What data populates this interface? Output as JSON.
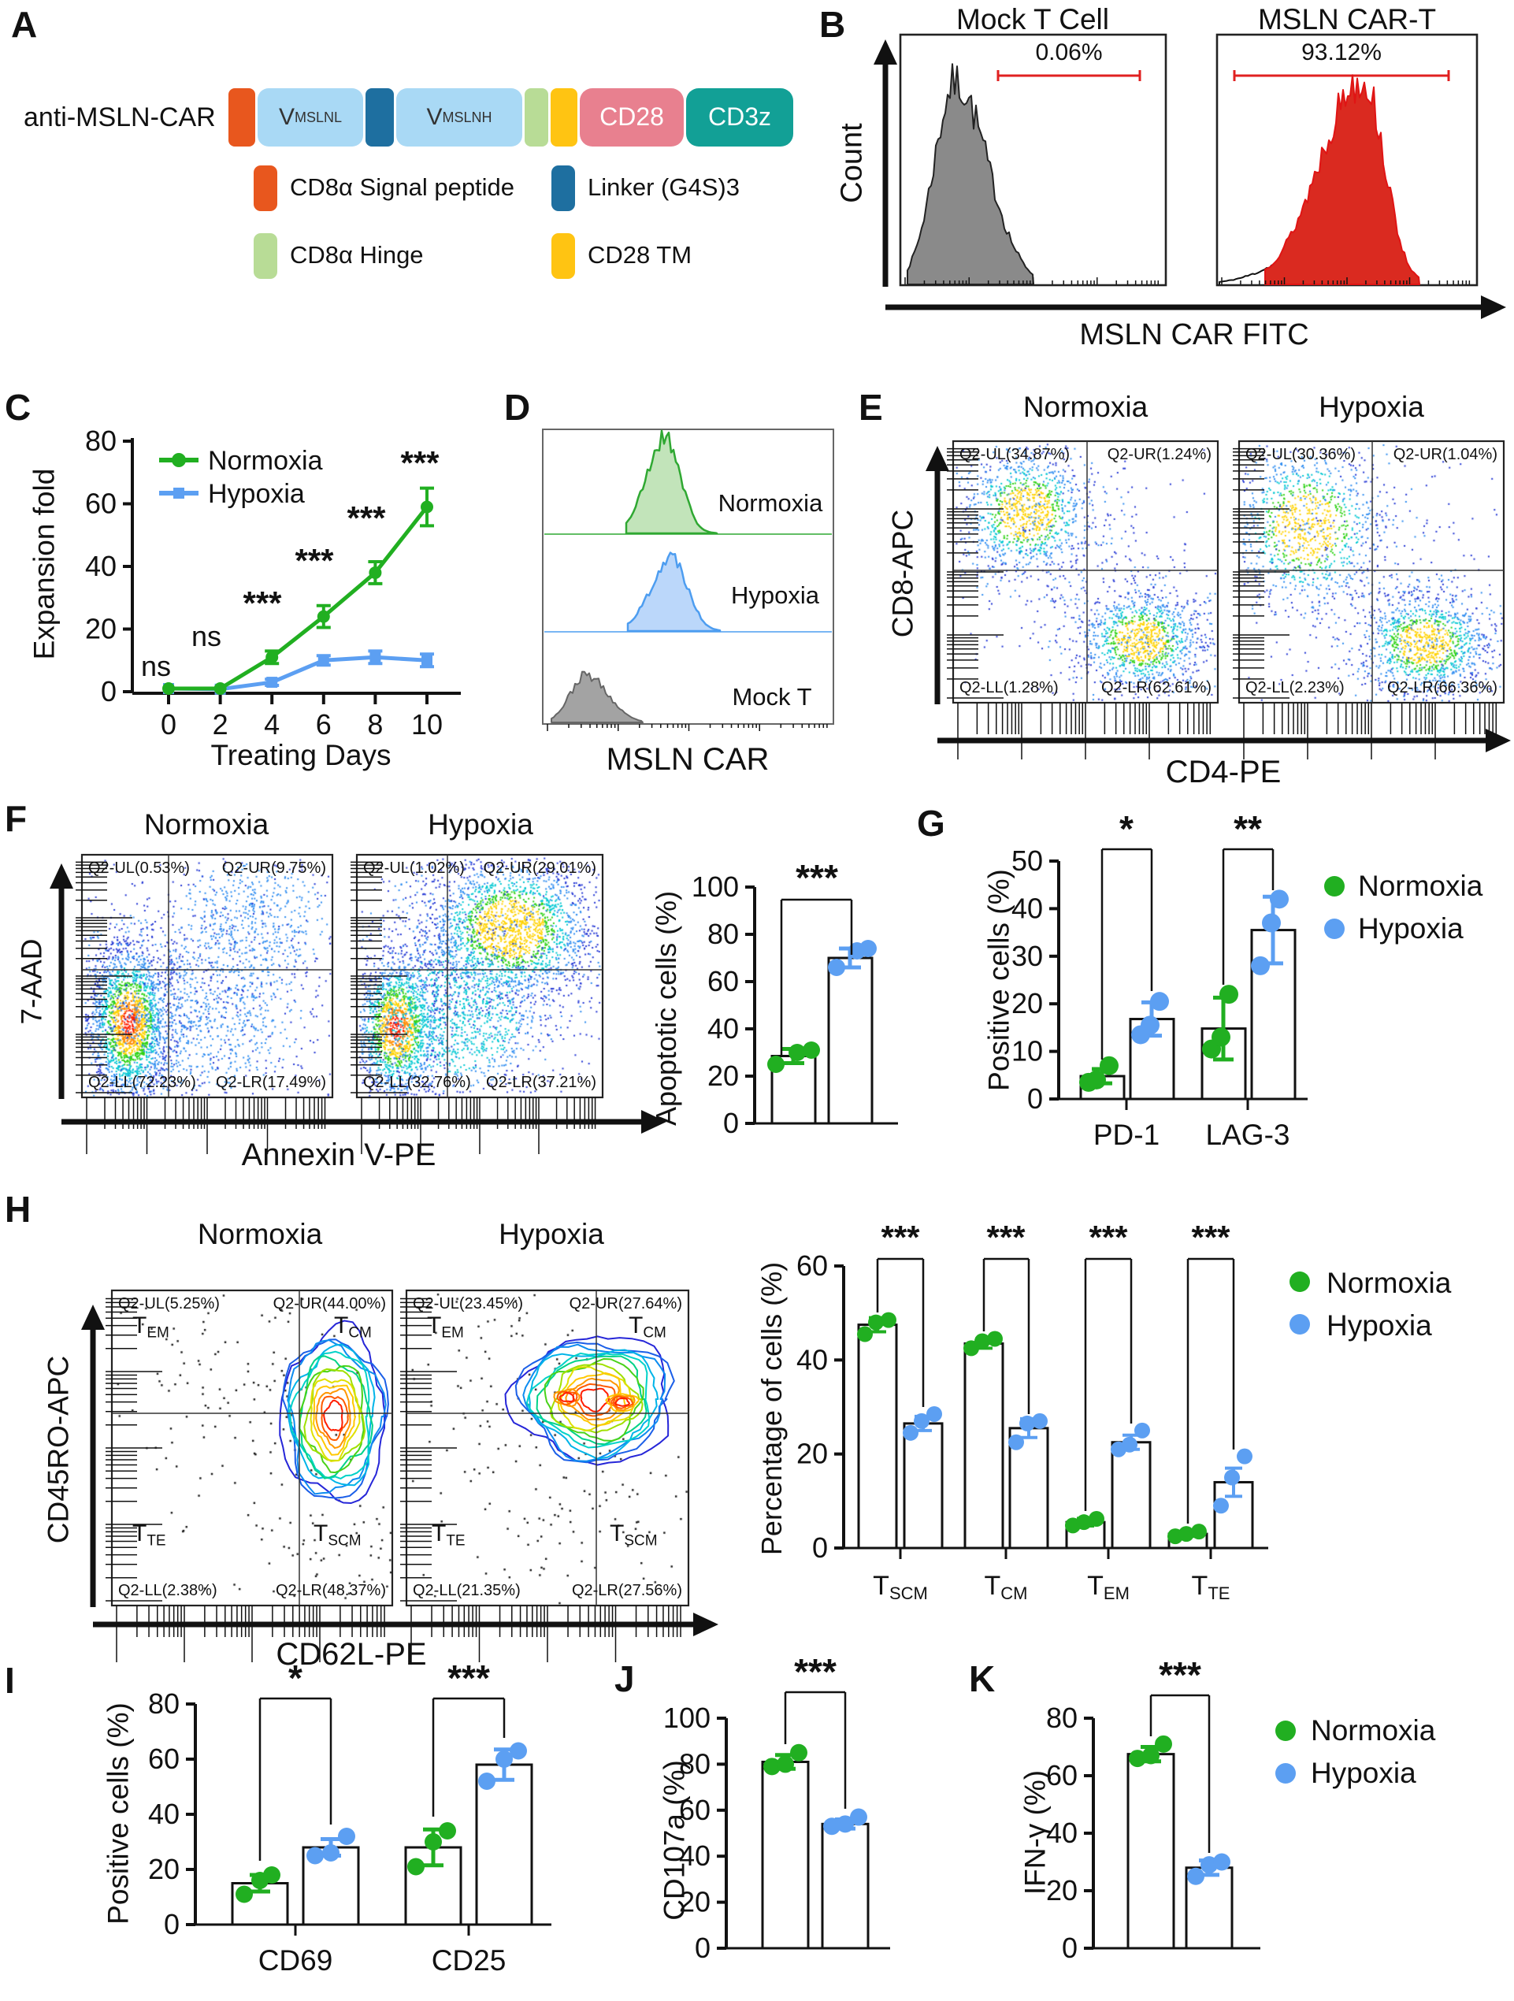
{
  "colors": {
    "normoxia": "#21AF21",
    "hypoxia": "#5C9FF2",
    "mock_grey": "#8A8A8A",
    "car_red": "#DA2A20",
    "gate_red": "#E02020"
  },
  "panels": {
    "A": {
      "letter": "A",
      "label": "anti-MSLN-CAR",
      "segments": [
        {
          "label": "",
          "sub": "",
          "color": "#E8571E"
        },
        {
          "label": "V",
          "sub": "MSLNL",
          "color": "#A9D9F5"
        },
        {
          "label": "",
          "sub": "",
          "color": "#1E6FA0"
        },
        {
          "label": "V",
          "sub": "MSLNH",
          "color": "#A9D9F5"
        },
        {
          "label": "",
          "sub": "",
          "color": "#B8DC96"
        },
        {
          "label": "",
          "sub": "",
          "color": "#FFC412"
        },
        {
          "label": "CD28",
          "sub": "",
          "color": "#E8808F"
        },
        {
          "label": "CD3z",
          "sub": "",
          "color": "#12A096"
        }
      ],
      "legend": [
        {
          "label": "CD8α Signal peptide",
          "color": "#E8571E"
        },
        {
          "label": "Linker (G4S)3",
          "color": "#1E6FA0"
        },
        {
          "label": "CD8α Hinge",
          "color": "#B8DC96"
        },
        {
          "label": "CD28 TM",
          "color": "#FFC412"
        }
      ]
    },
    "B": {
      "letter": "B",
      "titles": [
        "Mock T Cell",
        "MSLN CAR-T"
      ],
      "gates": [
        "0.06%",
        "93.12%"
      ],
      "ylabel": "Count",
      "xlabel": "MSLN CAR FITC"
    },
    "C": {
      "letter": "C",
      "ylabel": "Expansion fold",
      "xlabel": "Treating Days",
      "legend": [
        "Normoxia",
        "Hypoxia"
      ]
    },
    "D": {
      "letter": "D",
      "curves": [
        "Normoxia",
        "Hypoxia",
        "Mock T"
      ],
      "xlabel": "MSLN CAR"
    },
    "E": {
      "letter": "E",
      "titles": [
        "Normoxia",
        "Hypoxia"
      ],
      "ylabel": "CD8-APC",
      "xlabel": "CD4-PE",
      "plots": [
        {
          "quads": [
            "Q2-UL(34.87%)",
            "Q2-UR(1.24%)",
            "Q2-LL(1.28%)",
            "Q2-LR(62.61%)"
          ]
        },
        {
          "quads": [
            "Q2-UL(30.36%)",
            "Q2-UR(1.04%)",
            "Q2-LL(2.23%)",
            "Q2-LR(66.36%)"
          ]
        }
      ]
    },
    "F": {
      "letter": "F",
      "titles": [
        "Normoxia",
        "Hypoxia"
      ],
      "ylabel": "7-AAD",
      "xlabel": "Annexin V-PE",
      "plots": [
        {
          "quads": [
            "Q2-UL(0.53%)",
            "Q2-UR(9.75%)",
            "Q2-LL(72.23%)",
            "Q2-LR(17.49%)"
          ]
        },
        {
          "quads": [
            "Q2-UL(1.02%)",
            "Q2-UR(29.01%)",
            "Q2-LL(32.76%)",
            "Q2-LR(37.21%)"
          ]
        }
      ]
    },
    "G": {
      "letter": "G",
      "ylabel": "Positive cells (%)",
      "legend": [
        "Normoxia",
        "Hypoxia"
      ]
    },
    "H": {
      "letter": "H",
      "titles": [
        "Normoxia",
        "Hypoxia"
      ],
      "ylabel": "CD45RO-APC",
      "xlabel": "CD62L-PE",
      "T": "T",
      "quad_T": [
        "EM",
        "CM",
        "TE",
        "SCM"
      ],
      "plots": [
        {
          "quads": [
            "Q2-UL(5.25%)",
            "Q2-UR(44.00%)",
            "Q2-LL(2.38%)",
            "Q2-LR(48.37%)"
          ]
        },
        {
          "quads": [
            "Q2-UL(23.45%)",
            "Q2-UR(27.64%)",
            "Q2-LL(21.35%)",
            "Q2-LR(27.56%)"
          ]
        }
      ],
      "bar_ylabel": "Percentage of cells (%)",
      "legend": [
        "Normoxia",
        "Hypoxia"
      ]
    },
    "I": {
      "letter": "I",
      "ylabel": "Positive cells (%)"
    },
    "J": {
      "letter": "J",
      "ylabel": "CD107a (%)"
    },
    "K": {
      "letter": "K",
      "ylabel": "IFN-γ (%)",
      "legend": [
        "Normoxia",
        "Hypoxia"
      ]
    }
  },
  "chart_data": [
    {
      "panel": "B",
      "type": "flow-histogram",
      "plots": [
        {
          "title": "Mock T Cell",
          "gate_percent": 0.06,
          "fill": "grey"
        },
        {
          "title": "MSLN CAR-T",
          "gate_percent": 93.12,
          "fill": "red"
        }
      ],
      "xlabel": "MSLN CAR FITC",
      "ylabel": "Count"
    },
    {
      "panel": "C",
      "type": "line",
      "x": [
        0,
        2,
        4,
        6,
        8,
        10
      ],
      "xlabel": "Treating Days",
      "ylabel": "Expansion fold",
      "ylim": [
        0,
        80
      ],
      "yticks": [
        0,
        20,
        40,
        60,
        80
      ],
      "series": [
        {
          "name": "Normoxia",
          "color": "#21AF21",
          "marker": "circle",
          "values": [
            1,
            1,
            11,
            24,
            38,
            59
          ],
          "errors": [
            0.5,
            0.5,
            2,
            3.5,
            3.5,
            6
          ]
        },
        {
          "name": "Hypoxia",
          "color": "#5C9FF2",
          "marker": "square",
          "values": [
            1,
            0.8,
            3,
            10,
            11,
            10
          ],
          "errors": [
            0.3,
            0.3,
            1,
            1.5,
            2,
            2
          ]
        }
      ],
      "significance": [
        "ns",
        "ns",
        "***",
        "***",
        "***",
        "***"
      ],
      "legend_position": "top-left"
    },
    {
      "panel": "D",
      "type": "flow-histogram",
      "curves": [
        "Normoxia",
        "Hypoxia",
        "Mock T"
      ],
      "xlabel": "MSLN CAR"
    },
    {
      "panel": "E",
      "type": "flow-scatter",
      "xlabel": "CD4-PE",
      "ylabel": "CD8-APC",
      "plots": [
        {
          "title": "Normoxia",
          "quadrants": {
            "Q2-UL": 34.87,
            "Q2-UR": 1.24,
            "Q2-LL": 1.28,
            "Q2-LR": 62.61
          }
        },
        {
          "title": "Hypoxia",
          "quadrants": {
            "Q2-UL": 30.36,
            "Q2-UR": 1.04,
            "Q2-LL": 2.23,
            "Q2-LR": 66.36
          }
        }
      ]
    },
    {
      "panel": "F",
      "type": "flow-scatter+bar",
      "xlabel": "Annexin V-PE",
      "ylabel": "7-AAD",
      "plots": [
        {
          "title": "Normoxia",
          "quadrants": {
            "Q2-UL": 0.53,
            "Q2-UR": 9.75,
            "Q2-LL": 72.23,
            "Q2-LR": 17.49
          }
        },
        {
          "title": "Hypoxia",
          "quadrants": {
            "Q2-UL": 1.02,
            "Q2-UR": 29.01,
            "Q2-LL": 32.76,
            "Q2-LR": 37.21
          }
        }
      ],
      "bar": {
        "ylabel": "Apoptotic cells (%)",
        "ylim": [
          0,
          100
        ],
        "yticks": [
          0,
          20,
          40,
          60,
          80,
          100
        ],
        "categories": [
          "Normoxia",
          "Hypoxia"
        ],
        "values": [
          28.5,
          70
        ],
        "errors": [
          3,
          4
        ],
        "points": [
          [
            25,
            30,
            31
          ],
          [
            66,
            73,
            74
          ]
        ],
        "significance": "***"
      }
    },
    {
      "panel": "G",
      "type": "bar",
      "ylabel": "Positive cells (%)",
      "ylim": [
        0,
        50
      ],
      "yticks": [
        0,
        10,
        20,
        30,
        40,
        50
      ],
      "categories": [
        "PD-1",
        "LAG-3"
      ],
      "series": [
        {
          "name": "Normoxia",
          "values": [
            4.8,
            14.8
          ],
          "errors": [
            1.5,
            6.5
          ],
          "points": [
            [
              3.5,
              4,
              7
            ],
            [
              10.5,
              13,
              22
            ]
          ]
        },
        {
          "name": "Hypoxia",
          "values": [
            16.8,
            35.5
          ],
          "errors": [
            3.5,
            7
          ],
          "points": [
            [
              13.5,
              15.5,
              20.5
            ],
            [
              28,
              37,
              42
            ]
          ]
        }
      ],
      "significance": [
        "*",
        "**"
      ],
      "legend": [
        "Normoxia",
        "Hypoxia"
      ]
    },
    {
      "panel": "H",
      "type": "flow-contour+bar",
      "xlabel": "CD62L-PE",
      "ylabel": "CD45RO-APC",
      "plots": [
        {
          "title": "Normoxia",
          "quadrants": {
            "Q2-UL": 5.25,
            "Q2-UR": 44.0,
            "Q2-LL": 2.38,
            "Q2-LR": 48.37
          }
        },
        {
          "title": "Hypoxia",
          "quadrants": {
            "Q2-UL": 23.45,
            "Q2-UR": 27.64,
            "Q2-LL": 21.35,
            "Q2-LR": 27.56
          }
        }
      ],
      "quadrant_subsets": {
        "UL": "TEM",
        "UR": "TCM",
        "LL": "TTE",
        "LR": "TSCM"
      },
      "bar": {
        "ylabel": "Percentage of cells (%)",
        "ylim": [
          0,
          60
        ],
        "yticks": [
          0,
          20,
          40,
          60
        ],
        "categories": [
          "SCM",
          "CM",
          "EM",
          "TE"
        ],
        "series": [
          {
            "name": "Normoxia",
            "values": [
              47.5,
              43.5,
              5.5,
              3
            ],
            "errors": [
              1.5,
              1,
              0.8,
              0.5
            ],
            "points": [
              [
                45.5,
                48,
                48.5
              ],
              [
                42.5,
                44,
                44.5
              ],
              [
                4.8,
                5.5,
                6.2
              ],
              [
                2.5,
                3,
                3.5
              ]
            ]
          },
          {
            "name": "Hypoxia",
            "values": [
              26.5,
              25.5,
              22.5,
              14
            ],
            "errors": [
              1.5,
              2,
              1.5,
              3
            ],
            "points": [
              [
                24.5,
                27,
                28.5
              ],
              [
                22.5,
                26.5,
                27
              ],
              [
                21,
                22,
                25
              ],
              [
                9,
                15,
                19.5
              ]
            ]
          }
        ],
        "significance": [
          "***",
          "***",
          "***",
          "***"
        ]
      }
    },
    {
      "panel": "I",
      "type": "bar",
      "ylabel": "Positive cells (%)",
      "ylim": [
        0,
        80
      ],
      "yticks": [
        0,
        20,
        40,
        60,
        80
      ],
      "categories": [
        "CD69",
        "CD25"
      ],
      "series": [
        {
          "name": "Normoxia",
          "values": [
            15,
            28
          ],
          "errors": [
            3,
            6.5
          ],
          "points": [
            [
              11,
              16,
              18
            ],
            [
              21,
              30,
              34
            ]
          ]
        },
        {
          "name": "Hypoxia",
          "values": [
            28,
            58
          ],
          "errors": [
            3,
            5.5
          ],
          "points": [
            [
              25,
              26,
              32
            ],
            [
              52,
              60,
              63
            ]
          ]
        }
      ],
      "significance": [
        "*",
        "***"
      ]
    },
    {
      "panel": "J",
      "type": "bar",
      "ylabel": "CD107a (%)",
      "ylim": [
        0,
        100
      ],
      "yticks": [
        0,
        20,
        40,
        60,
        80,
        100
      ],
      "categories": [
        "Normoxia",
        "Hypoxia"
      ],
      "values": [
        81,
        54
      ],
      "errors": [
        3,
        2
      ],
      "points": [
        [
          79,
          80,
          85
        ],
        [
          53,
          54,
          57
        ]
      ],
      "significance": "***"
    },
    {
      "panel": "K",
      "type": "bar",
      "ylabel": "IFN-γ (%)",
      "ylim": [
        0,
        80
      ],
      "yticks": [
        0,
        20,
        40,
        60,
        80
      ],
      "categories": [
        "Normoxia",
        "Hypoxia"
      ],
      "values": [
        67.5,
        28
      ],
      "errors": [
        2.5,
        2.5
      ],
      "points": [
        [
          66,
          67,
          71
        ],
        [
          25,
          29,
          30
        ]
      ],
      "significance": "***",
      "legend": [
        "Normoxia",
        "Hypoxia"
      ]
    }
  ]
}
